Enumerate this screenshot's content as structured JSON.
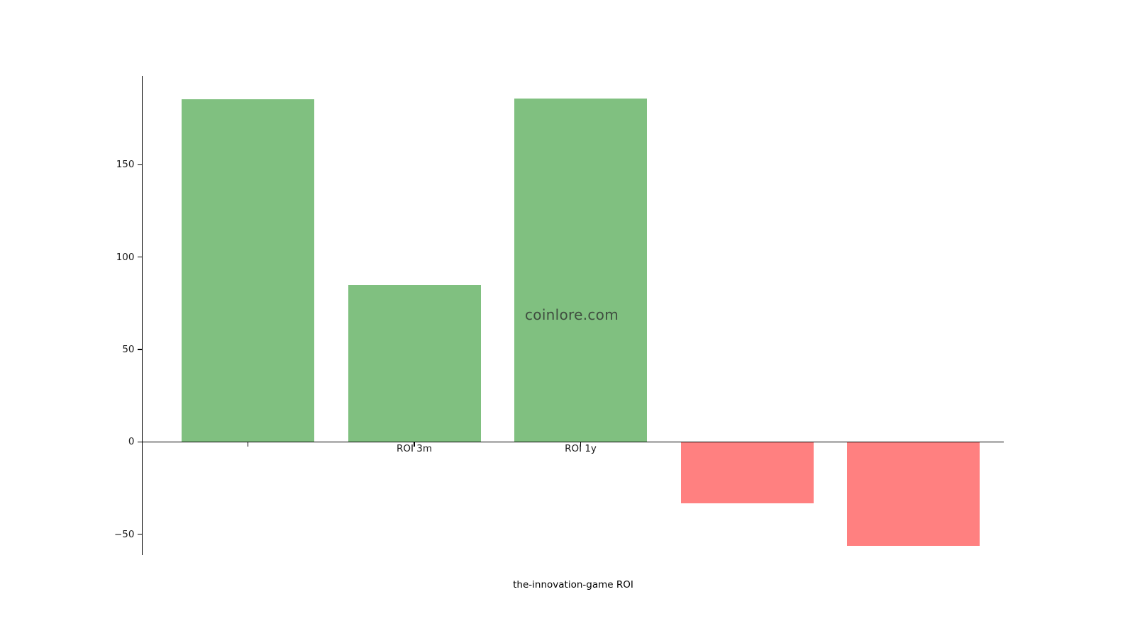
{
  "watermark": "coinlore.com",
  "chart_data": {
    "type": "bar",
    "title": "the-innovation-game ROI",
    "xlabel": "",
    "ylabel": "",
    "categories": [
      "",
      "ROI 3m",
      "ROI 1y",
      "",
      ""
    ],
    "values": [
      185.4,
      84.8,
      186.0,
      -33.3,
      -56.4
    ],
    "bar_colors": [
      "#80c080",
      "#80c080",
      "#80c080",
      "#ff8080",
      "#ff8080"
    ],
    "positive_color": "#80c080",
    "negative_color": "#ff8080",
    "yticks": [
      150,
      100,
      50,
      0,
      -50
    ],
    "ytick_labels": [
      "150",
      "100",
      "50",
      "0",
      "−50"
    ],
    "ylim": [
      -61,
      198
    ],
    "grid": false,
    "legend": "none",
    "axis_color": "#000000",
    "background_color": "#ffffff"
  }
}
